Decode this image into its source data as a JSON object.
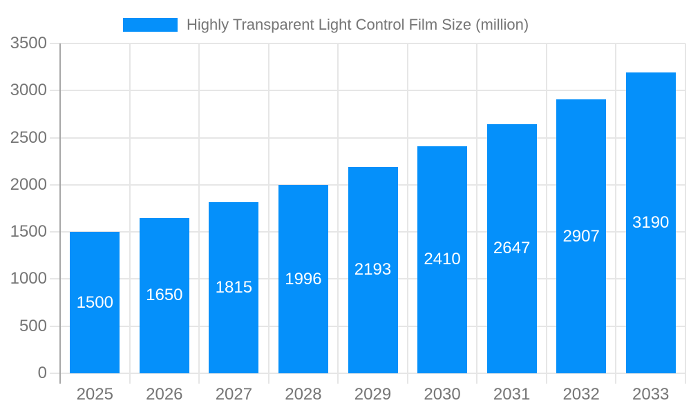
{
  "chart_data": {
    "type": "bar",
    "title": "Highly Transparent Light Control Film Size (million)",
    "legend_position": "top",
    "categories": [
      "2025",
      "2026",
      "2027",
      "2028",
      "2029",
      "2030",
      "2031",
      "2032",
      "2033"
    ],
    "series": [
      {
        "name": "Highly Transparent Light Control Film Size (million)",
        "values": [
          1500,
          1650,
          1815,
          1996,
          2193,
          2410,
          2647,
          2907,
          3190
        ]
      }
    ],
    "xlabel": "",
    "ylabel": "",
    "ylim": [
      0,
      3500
    ],
    "yticks": [
      0,
      500,
      1000,
      1500,
      2000,
      2500,
      3000,
      3500
    ],
    "grid": true,
    "value_labels": "inside-center"
  },
  "colors": {
    "bar": "#0590fa",
    "grid": "#e6e6e6",
    "axis_line": "#a6a6a6",
    "axis_label": "#757575",
    "value_label": "#ffffff",
    "background": "#ffffff"
  }
}
